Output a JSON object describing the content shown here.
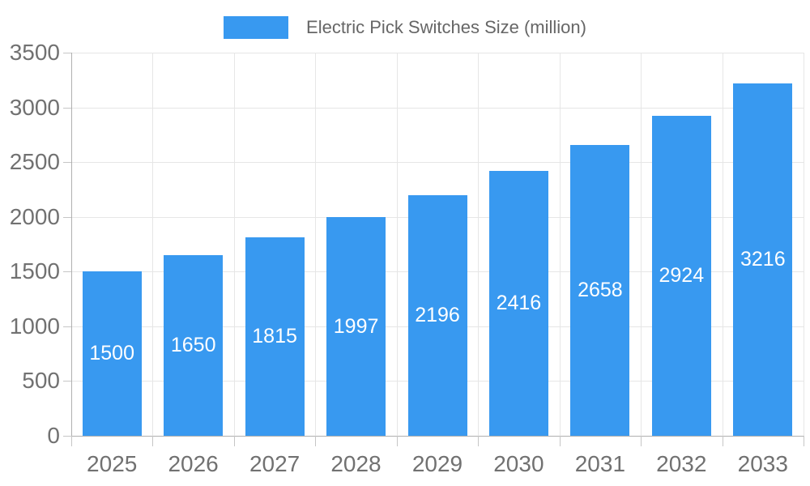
{
  "chart_data": {
    "type": "bar",
    "title": "Electric Pick Switches Size (million)",
    "legend_position": "top",
    "categories": [
      "2025",
      "2026",
      "2027",
      "2028",
      "2029",
      "2030",
      "2031",
      "2032",
      "2033"
    ],
    "series": [
      {
        "name": "Electric Pick Switches Size (million)",
        "values": [
          1500,
          1650,
          1815,
          1997,
          2196,
          2416,
          2658,
          2924,
          3216
        ]
      }
    ],
    "xlabel": "",
    "ylabel": "",
    "ylim": [
      0,
      3500
    ],
    "yticks": [
      0,
      500,
      1000,
      1500,
      2000,
      2500,
      3000,
      3500
    ],
    "grid": true,
    "value_labels": "inside-center"
  },
  "colors": {
    "bar": "#3899f0",
    "grid": "#e6e6e6",
    "axis": "#b0b0b0",
    "tick": "#c6c6c6",
    "axis_text": "#717171",
    "legend_text": "#666666",
    "value_label_text": "#ffffff",
    "background": "#ffffff"
  }
}
